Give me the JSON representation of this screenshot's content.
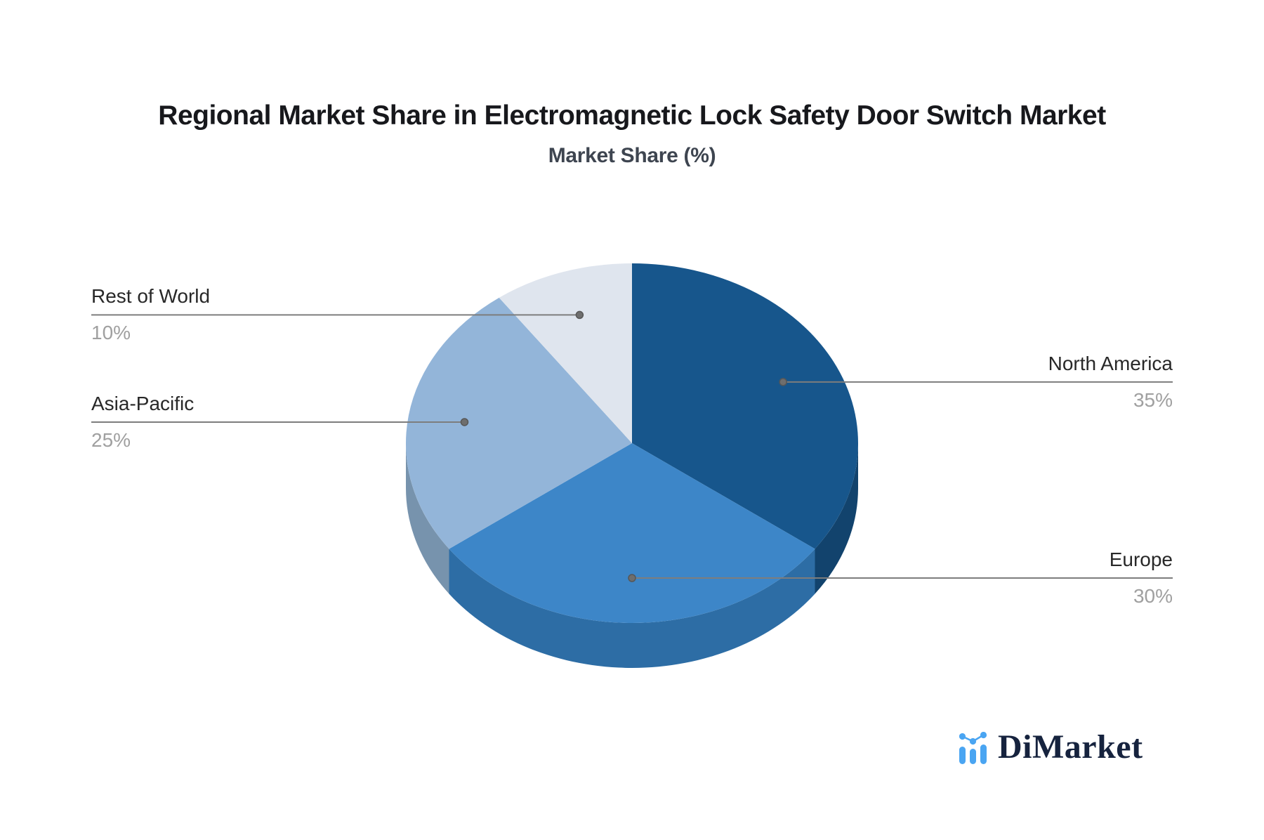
{
  "header": {
    "title": "Regional Market Share in Electromagnetic Lock Safety Door Switch Market",
    "subtitle": "Market Share (%)"
  },
  "chart_data": {
    "type": "pie",
    "style": "3d",
    "title": "Regional Market Share in Electromagnetic Lock Safety Door Switch Market",
    "subtitle": "Market Share (%)",
    "unit": "%",
    "direction": "clockwise",
    "start_angle_deg": 0,
    "legend_position": "none",
    "slices": [
      {
        "label": "North America",
        "value": 35,
        "display": "35%",
        "color": "#17568c",
        "side_color": "#12436d"
      },
      {
        "label": "Europe",
        "value": 30,
        "display": "30%",
        "color": "#3d86c8",
        "side_color": "#2d6da5"
      },
      {
        "label": "Asia-Pacific",
        "value": 25,
        "display": "25%",
        "color": "#93b5d9",
        "side_color": "#7793ad"
      },
      {
        "label": "Rest of World",
        "value": 10,
        "display": "10%",
        "color": "#dfe5ee",
        "side_color": "#c4cedc"
      }
    ],
    "leader_line_color": "#7d7d7d",
    "leader_dot_color": "#6e6e6e"
  },
  "brand": {
    "name": "DiMarket",
    "icon": "bar-chart-trend-icon",
    "icon_color": "#4aa5f2",
    "text_color": "#16233e"
  }
}
